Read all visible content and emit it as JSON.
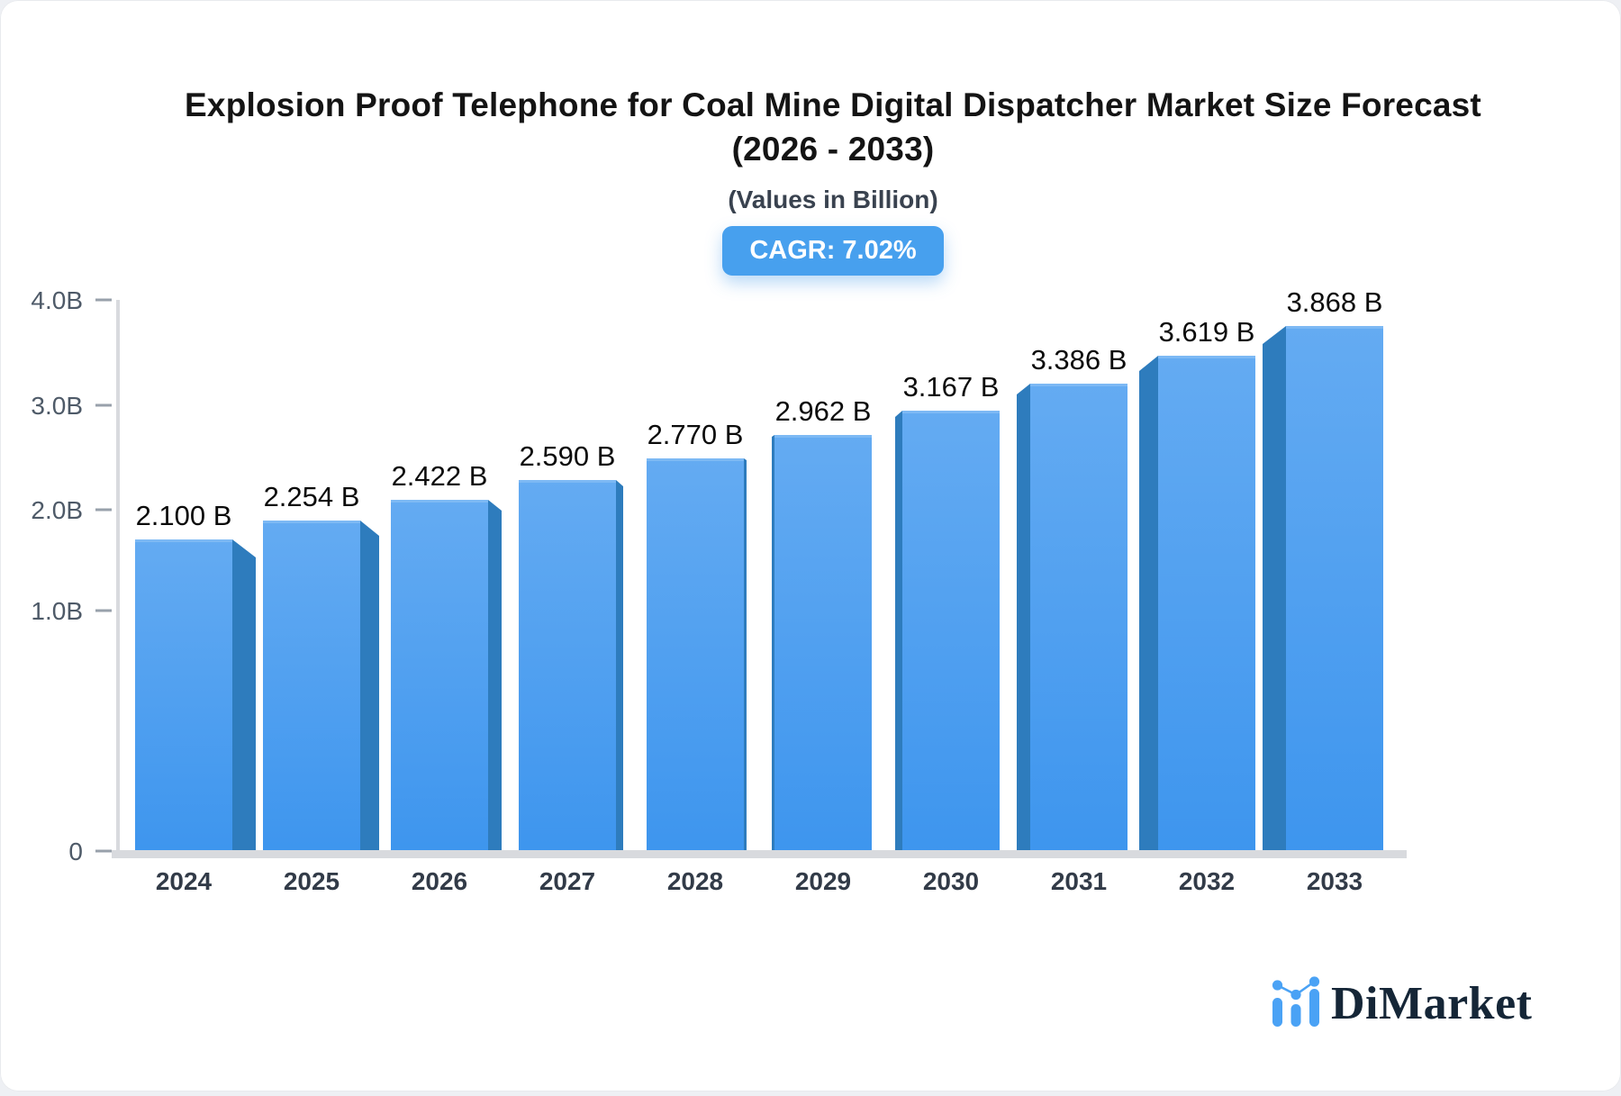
{
  "header": {
    "title_line1": "Explosion Proof Telephone for Coal Mine Digital Dispatcher Market Size Forecast",
    "title_line2": "(2026 - 2033)",
    "subtitle": "(Values in Billion)",
    "cagr_badge": "CAGR: 7.02%"
  },
  "chart_data": {
    "type": "bar",
    "title": "Explosion Proof Telephone for Coal Mine Digital Dispatcher Market Size Forecast (2026 - 2033)",
    "subtitle": "(Values in Billion)",
    "annotation": "CAGR: 7.02%",
    "categories": [
      "2024",
      "2025",
      "2026",
      "2027",
      "2028",
      "2029",
      "2030",
      "2031",
      "2032",
      "2033"
    ],
    "values": [
      2.1,
      2.254,
      2.422,
      2.59,
      2.77,
      2.962,
      3.167,
      3.386,
      3.619,
      3.868
    ],
    "value_labels": [
      "2.100 B",
      "2.254 B",
      "2.422 B",
      "2.590 B",
      "2.770 B",
      "2.962 B",
      "3.167 B",
      "3.386 B",
      "3.619 B",
      "3.868 B"
    ],
    "y_ticks": [
      "4.0B",
      "3.0B",
      "2.0B",
      "1.0B",
      "0"
    ],
    "ylim": [
      0,
      4
    ],
    "xlabel": "",
    "ylabel": "",
    "grid": false,
    "legend": "none",
    "style_3d": true,
    "colors": {
      "bar_front_top": "#64abf2",
      "bar_front_bottom": "#3d95ee",
      "bar_side": "#2e7cbd",
      "axis_line": "#d8dade",
      "tick_dash": "#98a1ab",
      "tick_label": "#4e5a68",
      "category_label": "#323b48",
      "value_label": "#0b0b0b"
    }
  },
  "footer": {
    "brand": "DiMarket",
    "logo_icon": "bar-chart-logo-icon",
    "logo_color": "#4aa2f5",
    "brand_color": "#152637"
  }
}
